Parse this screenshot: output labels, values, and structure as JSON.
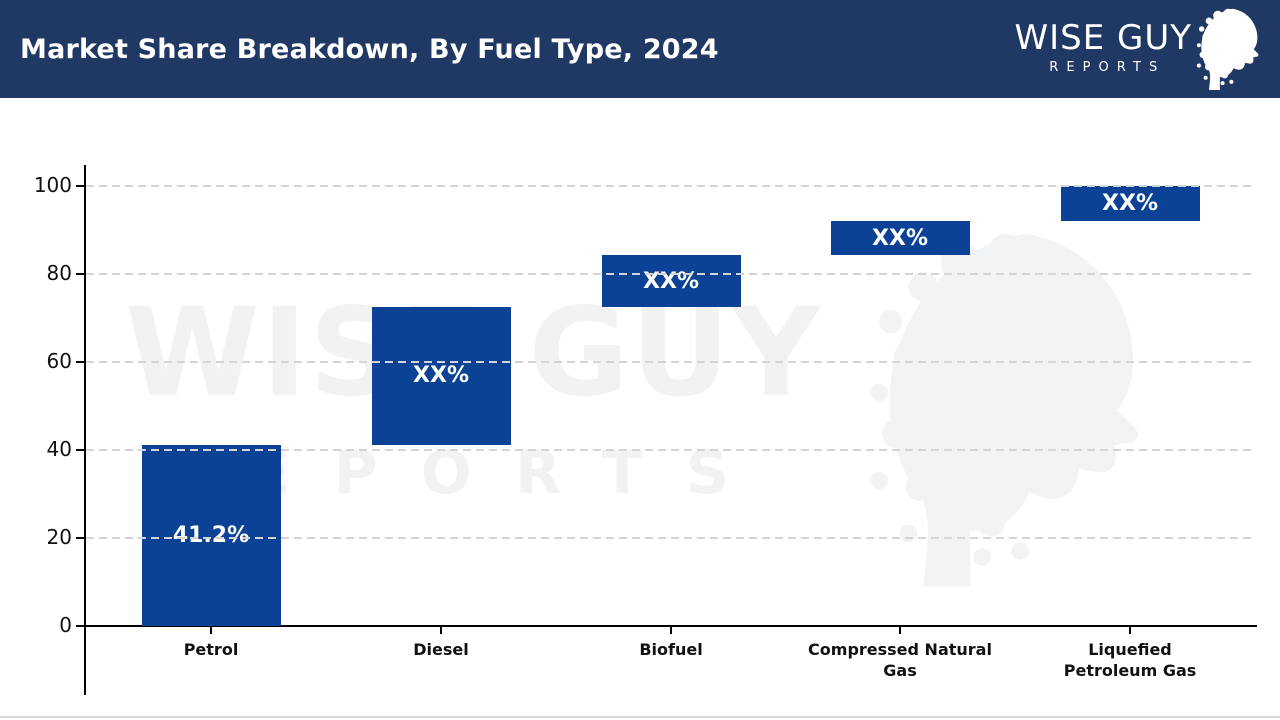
{
  "header": {
    "title": "Market Share Breakdown, By Fuel Type, 2024",
    "bg_color": "#1f3864",
    "logo": {
      "line1": "WISE GUY",
      "line2": "REPORTS",
      "head_icon": "dotted-head-profile-icon"
    }
  },
  "watermark": {
    "line1": "WISE GUY",
    "line2": "REPORTS",
    "head_icon": "dotted-head-profile-icon"
  },
  "chart_data": {
    "type": "bar",
    "subtype": "waterfall",
    "title": "Market Share Breakdown, By Fuel Type, 2024",
    "categories": [
      "Petrol",
      "Diesel",
      "Biofuel",
      "Compressed Natural Gas",
      "Liquefied Petroleum Gas"
    ],
    "segments": [
      {
        "category": "Petrol",
        "tick_label": "Petrol",
        "start": 0,
        "end": 41.2,
        "label": "41.2%"
      },
      {
        "category": "Diesel",
        "tick_label": "Diesel",
        "start": 41.2,
        "end": 72.5,
        "label": "XX%"
      },
      {
        "category": "Biofuel",
        "tick_label": "Biofuel",
        "start": 72.5,
        "end": 84.3,
        "label": "XX%"
      },
      {
        "category": "Compressed Natural Gas",
        "tick_label": "Compressed Natural\nGas",
        "start": 84.3,
        "end": 92.0,
        "label": "XX%"
      },
      {
        "category": "Liquefied Petroleum Gas",
        "tick_label": "Liquefied\nPetroleum Gas",
        "start": 92.0,
        "end": 100.0,
        "label": "XX%"
      }
    ],
    "ylim": [
      0,
      100
    ],
    "yticks": [
      0,
      20,
      40,
      60,
      80,
      100
    ],
    "xlabel": "",
    "ylabel": "",
    "grid": "horizontal-dashed",
    "legend": "none",
    "bar_color": "#0b4296",
    "bar_label_color": "#ffffff",
    "axis_color": "#000000",
    "gridline_color": "#d4d4d4"
  }
}
